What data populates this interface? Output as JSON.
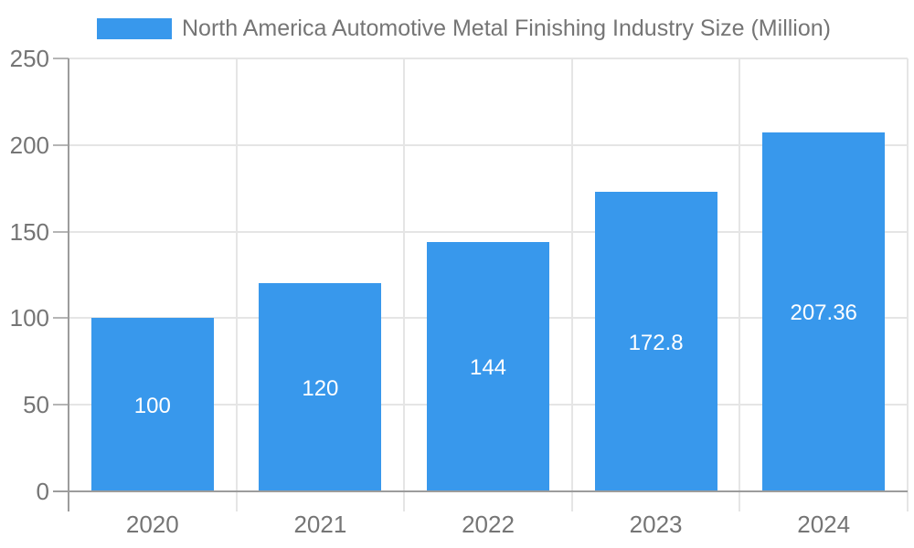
{
  "legend": {
    "label": "North America Automotive Metal Finishing Industry Size (Million)"
  },
  "chart_data": {
    "type": "bar",
    "title": "North America Automotive Metal Finishing Industry Size (Million)",
    "categories": [
      "2020",
      "2021",
      "2022",
      "2023",
      "2024"
    ],
    "values": [
      100,
      120,
      144,
      172.8,
      207.36
    ],
    "bar_labels": [
      "100",
      "120",
      "144",
      "172.8",
      "207.36"
    ],
    "xlabel": "",
    "ylabel": "",
    "ylim": [
      0,
      250
    ],
    "yticks": [
      0,
      50,
      100,
      150,
      200,
      250
    ],
    "ytick_labels": [
      "0",
      "50",
      "100",
      "150",
      "200",
      "250"
    ],
    "grid": true,
    "legend_position": "top-center",
    "colors": {
      "bar": "#3898EC",
      "bar_label": "#FFFFFF",
      "axis_text": "#757575",
      "axis_line": "#9C9C9C",
      "tick": "#B5B5B5",
      "gridline": "#E5E5E5",
      "background": "#FFFFFF"
    }
  }
}
